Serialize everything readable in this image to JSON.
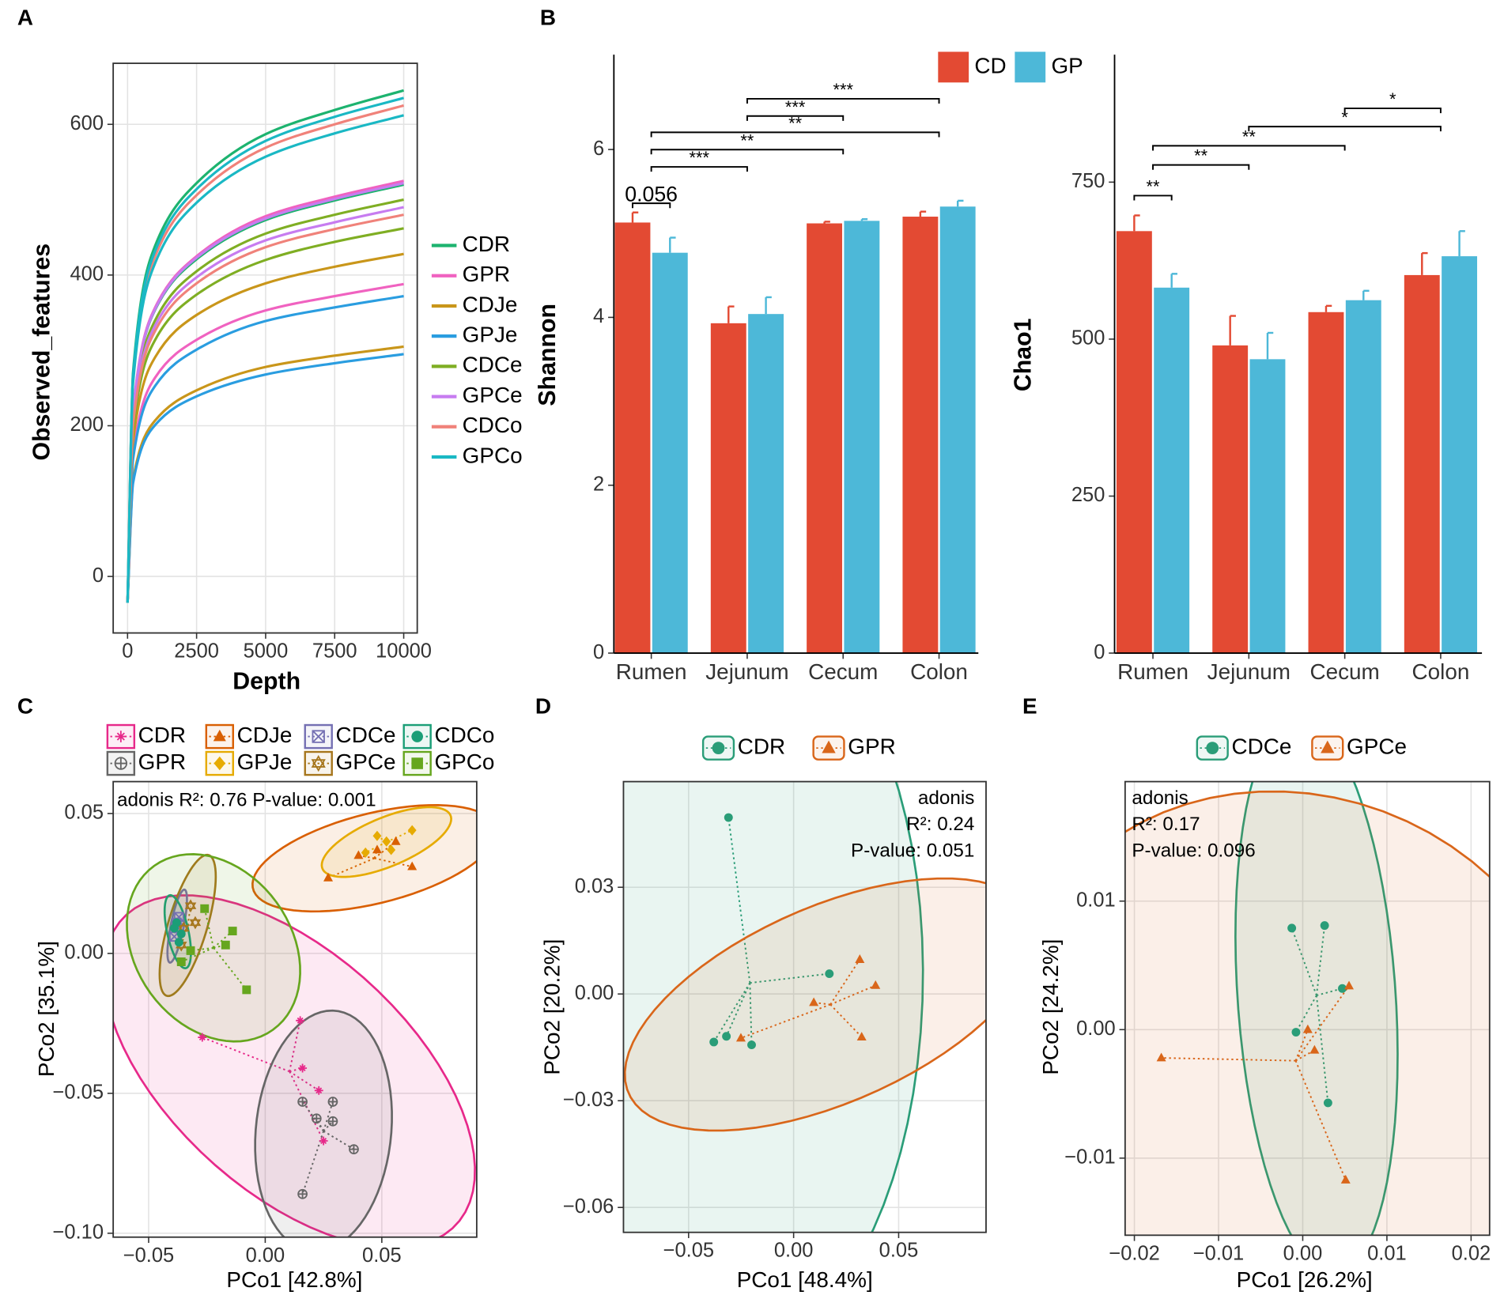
{
  "chart_data": [
    {
      "type": "line",
      "panel": "A",
      "xlabel": "Depth",
      "ylabel": "Observed_features",
      "x": [
        0,
        200,
        1000,
        2500,
        5000,
        7500,
        10000
      ],
      "xlim": [
        -520,
        10490
      ],
      "ylim": [
        -75,
        681
      ],
      "xticks": [
        0,
        2500,
        5000,
        7500,
        10000
      ],
      "yticks": [
        0,
        200,
        400,
        600
      ],
      "grid": true,
      "series": [
        {
          "name": "CDR",
          "color": "#1db36f",
          "curves": [
            [
              -35,
              271,
              439,
              522,
              587,
              619,
              645
            ],
            [
              -35,
              218,
              354,
              421,
              473,
              499,
              520
            ]
          ]
        },
        {
          "name": "GPR",
          "color": "#f062c0",
          "curves": [
            [
              -35,
              221,
              357,
              425,
              478,
              504,
              525
            ],
            [
              -35,
              163,
              264,
              314,
              353,
              372,
              388
            ]
          ]
        },
        {
          "name": "CDJe",
          "color": "#c9961a",
          "curves": [
            [
              -35,
              180,
              291,
              347,
              389,
              411,
              428
            ],
            [
              -35,
              128,
              207,
              247,
              278,
              293,
              305
            ]
          ]
        },
        {
          "name": "GPJe",
          "color": "#2a9de0",
          "curves": [
            [
              -35,
              156,
              253,
              301,
              339,
              357,
              372
            ],
            [
              -35,
              124,
              201,
              239,
              268,
              283,
              295
            ]
          ]
        },
        {
          "name": "CDCe",
          "color": "#7fae23",
          "curves": [
            [
              -35,
              194,
              314,
              374,
              420,
              444,
              462
            ],
            [
              -35,
              210,
              340,
              405,
              455,
              480,
              500
            ]
          ]
        },
        {
          "name": "GPCe",
          "color": "#c77cf0",
          "curves": [
            [
              -35,
              219,
              355,
              423,
              475,
              501,
              522
            ],
            [
              -35,
              206,
              333,
              397,
              446,
              470,
              490
            ]
          ]
        },
        {
          "name": "CDCo",
          "color": "#f0827a",
          "curves": [
            [
              -35,
              263,
              425,
              506,
              569,
              600,
              625
            ],
            [
              -35,
              202,
              326,
              389,
              437,
              461,
              480
            ]
          ]
        },
        {
          "name": "GPCo",
          "color": "#1ab8c4",
          "curves": [
            [
              -35,
              257,
              416,
              496,
              557,
              588,
              612
            ],
            [
              -35,
              267,
              432,
              514,
              578,
              610,
              635
            ]
          ]
        }
      ]
    },
    {
      "type": "bar",
      "panel": "B",
      "ylabel": "Shannon",
      "categories": [
        "Rumen",
        "Jejunum",
        "Cecum",
        "Colon"
      ],
      "ylim": [
        0,
        7.13
      ],
      "yticks": [
        0,
        2,
        4,
        6
      ],
      "series": [
        {
          "name": "CD",
          "color": "#e34a33",
          "values": [
            5.13,
            3.93,
            5.12,
            5.2
          ],
          "errors": [
            0.12,
            0.2,
            0.02,
            0.06
          ]
        },
        {
          "name": "GP",
          "color": "#4db8d8",
          "values": [
            4.77,
            4.04,
            5.15,
            5.32
          ],
          "errors": [
            0.18,
            0.2,
            0.02,
            0.07
          ]
        }
      ],
      "brackets": [
        {
          "span": [
            "Rumen",
            "Rumen"
          ],
          "label": "0.056"
        },
        {
          "span": [
            "Rumen",
            "Jejunum"
          ],
          "label": "***"
        },
        {
          "span": [
            "Rumen",
            "Cecum"
          ],
          "label": "**"
        },
        {
          "span": [
            "Rumen",
            "Colon"
          ],
          "label": "**"
        },
        {
          "span": [
            "Jejunum",
            "Cecum"
          ],
          "label": "***"
        },
        {
          "span": [
            "Jejunum",
            "Colon"
          ],
          "label": "***"
        }
      ]
    },
    {
      "type": "bar",
      "ylabel": "Chao1",
      "categories": [
        "Rumen",
        "Jejunum",
        "Cecum",
        "Colon"
      ],
      "ylim": [
        0,
        953
      ],
      "yticks": [
        0,
        250,
        500,
        750
      ],
      "series": [
        {
          "color": "#e34a33",
          "values": [
            672,
            490,
            543,
            602
          ],
          "errors": [
            25,
            47,
            10,
            35
          ]
        },
        {
          "color": "#4db8d8",
          "values": [
            582,
            468,
            562,
            632
          ],
          "errors": [
            22,
            42,
            15,
            40
          ]
        }
      ],
      "brackets": [
        {
          "span": [
            "Rumen",
            "Rumen"
          ],
          "label": "**"
        },
        {
          "span": [
            "Rumen",
            "Jejunum"
          ],
          "label": "**"
        },
        {
          "span": [
            "Rumen",
            "Cecum"
          ],
          "label": "**"
        },
        {
          "span": [
            "Jejunum",
            "Colon"
          ],
          "label": "*"
        },
        {
          "span": [
            "Cecum",
            "Colon"
          ],
          "label": "*"
        }
      ]
    },
    {
      "type": "scatter",
      "panel": "C",
      "xlabel": "PCo1 [42.8%]",
      "ylabel": "PCo2 [35.1%]",
      "annotation": [
        "adonis R²: 0.76 P-value: 0.001"
      ],
      "xlim": [
        -0.0652,
        0.0907
      ],
      "ylim": [
        -0.1014,
        0.0614
      ],
      "xticks": [
        {
          "value": -0.05,
          "label": "−0.05"
        },
        {
          "value": 0,
          "label": "0.00"
        },
        0.05
      ],
      "yticks": [
        {
          "value": -0.1,
          "label": "−0.10"
        },
        {
          "value": -0.05,
          "label": "−0.05"
        },
        {
          "value": 0,
          "label": "0.00"
        },
        0.05
      ],
      "grid": true,
      "series": [
        {
          "name": "CDR",
          "color": "#e7298a",
          "marker": "asterisk",
          "x": [
            -0.027,
            0.015,
            0.016,
            0.023,
            0.025
          ],
          "y": [
            -0.03,
            -0.024,
            -0.041,
            -0.049,
            -0.067
          ]
        },
        {
          "name": "GPR",
          "color": "#666666",
          "marker": "circleplus",
          "x": [
            0.016,
            0.029,
            0.029,
            0.022,
            0.038,
            0.016
          ],
          "y": [
            -0.053,
            -0.053,
            -0.06,
            -0.059,
            -0.07,
            -0.086
          ]
        },
        {
          "name": "CDJe",
          "color": "#d95f02",
          "marker": "triangle",
          "x": [
            0.027,
            0.04,
            0.048,
            0.056,
            0.063
          ],
          "y": [
            0.027,
            0.035,
            0.037,
            0.04,
            0.031
          ]
        },
        {
          "name": "GPJe",
          "color": "#e6ab02",
          "marker": "diamond",
          "x": [
            0.048,
            0.063,
            0.054,
            0.043,
            0.052
          ],
          "y": [
            0.042,
            0.044,
            0.037,
            0.036,
            0.04
          ]
        },
        {
          "name": "CDCe",
          "color": "#7570b3",
          "marker": "squarex",
          "x": [
            -0.038,
            -0.037,
            -0.039,
            -0.037
          ],
          "y": [
            0.011,
            0.009,
            0.006,
            0.013
          ]
        },
        {
          "name": "GPCe",
          "color": "#a6761d",
          "marker": "hexstar",
          "x": [
            -0.032,
            -0.035,
            -0.03,
            -0.036
          ],
          "y": [
            0.017,
            0.009,
            0.011,
            0.003
          ]
        },
        {
          "name": "CDCo",
          "color": "#1b9e77",
          "marker": "circle",
          "x": [
            -0.038,
            -0.036,
            -0.039,
            -0.037
          ],
          "y": [
            0.011,
            0.007,
            0.009,
            0.004
          ]
        },
        {
          "name": "GPCo",
          "color": "#66a61e",
          "marker": "square",
          "x": [
            -0.026,
            -0.014,
            -0.008,
            -0.036,
            -0.017,
            -0.032
          ],
          "y": [
            0.016,
            0.008,
            -0.013,
            -0.003,
            0.003,
            0.001
          ]
        }
      ]
    },
    {
      "type": "scatter",
      "panel": "D",
      "xlabel": "PCo1 [48.4%]",
      "ylabel": "PCo2 [20.2%]",
      "annotation": [
        "adonis",
        "R²: 0.24",
        "P-value: 0.051"
      ],
      "xlim": [
        -0.081,
        0.0916
      ],
      "ylim": [
        -0.067,
        0.0597
      ],
      "xticks": [
        {
          "value": -0.05,
          "label": "−0.05"
        },
        {
          "value": 0,
          "label": "0.00"
        },
        0.05
      ],
      "yticks": [
        {
          "value": -0.06,
          "label": "−0.06"
        },
        {
          "value": -0.03,
          "label": "−0.03"
        },
        {
          "value": 0,
          "label": "0.00"
        },
        0.03
      ],
      "grid": true,
      "series": [
        {
          "name": "CDR",
          "color": "#2a9d78",
          "marker": "circle",
          "x": [
            -0.031,
            0.017,
            -0.038,
            -0.032,
            -0.02
          ],
          "y": [
            0.0496,
            0.0057,
            -0.0135,
            -0.0119,
            -0.0143
          ]
        },
        {
          "name": "GPR",
          "color": "#d9661a",
          "marker": "triangle",
          "x": [
            0.0315,
            0.039,
            0.0096,
            0.0324,
            -0.0251
          ],
          "y": [
            0.0097,
            0.0024,
            -0.0024,
            -0.0121,
            -0.0124
          ]
        }
      ]
    },
    {
      "type": "scatter",
      "panel": "E",
      "xlabel": "PCo1 [26.2%]",
      "ylabel": "PCo2 [24.2%]",
      "annotation": [
        "adonis",
        "R²: 0.17",
        "P-value: 0.096"
      ],
      "xlim": [
        -0.0211,
        0.0222
      ],
      "ylim": [
        -0.016,
        0.0193
      ],
      "xticks": [
        {
          "value": -0.02,
          "label": "−0.02"
        },
        {
          "value": -0.01,
          "label": "−0.01"
        },
        {
          "value": 0,
          "label": "0.00"
        },
        0.01,
        0.02
      ],
      "yticks": [
        {
          "value": -0.01,
          "label": "−0.01"
        },
        {
          "value": 0,
          "label": "0.00"
        },
        0.01
      ],
      "grid": true,
      "series": [
        {
          "name": "CDCe",
          "color": "#2a9d78",
          "marker": "circle",
          "x": [
            -0.0013,
            0.0026,
            0.0047,
            -0.0008,
            0.003
          ],
          "y": [
            0.0079,
            0.0081,
            0.0032,
            -0.0002,
            -0.0057
          ]
        },
        {
          "name": "GPCe",
          "color": "#d9661a",
          "marker": "triangle",
          "x": [
            -0.0168,
            0.0055,
            0.0006,
            0.0014,
            0.0051
          ],
          "y": [
            -0.0022,
            0.0034,
            0.0,
            -0.0016,
            -0.0117
          ]
        }
      ]
    }
  ]
}
